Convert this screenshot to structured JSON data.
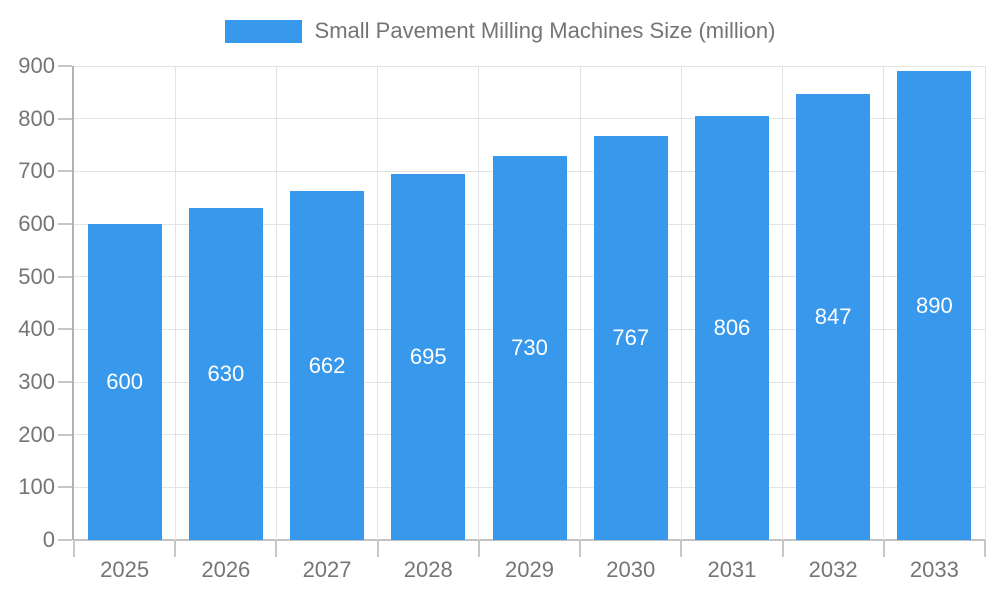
{
  "legend": {
    "label": "Small Pavement Milling Machines Size (million)",
    "swatch_color": "#3898EC"
  },
  "chart_data": {
    "type": "bar",
    "title": "Small Pavement Milling Machines Size (million)",
    "categories": [
      "2025",
      "2026",
      "2027",
      "2028",
      "2029",
      "2030",
      "2031",
      "2032",
      "2033"
    ],
    "series": [
      {
        "name": "Small Pavement Milling Machines Size (million)",
        "values": [
          600,
          630,
          662,
          695,
          730,
          767,
          806,
          847,
          890
        ]
      }
    ],
    "values": [
      600,
      630,
      662,
      695,
      730,
      767,
      806,
      847,
      890
    ],
    "bar_labels": [
      "600",
      "630",
      "662",
      "695",
      "730",
      "767",
      "806",
      "847",
      "890"
    ],
    "xlabel": "",
    "ylabel": "",
    "ylim": [
      0,
      900
    ],
    "yticks": [
      0,
      100,
      200,
      300,
      400,
      500,
      600,
      700,
      800,
      900
    ],
    "grid": true,
    "legend_position": "top"
  },
  "colors": {
    "bar_fill": "#3898EC",
    "bar_label_text": "#FFFFFF",
    "axis_text": "#757575",
    "grid_line": "#E3E3E3",
    "axis_line": "#B3B3B3",
    "tick_line": "#C6C6C6",
    "background": "#FFFFFF"
  }
}
